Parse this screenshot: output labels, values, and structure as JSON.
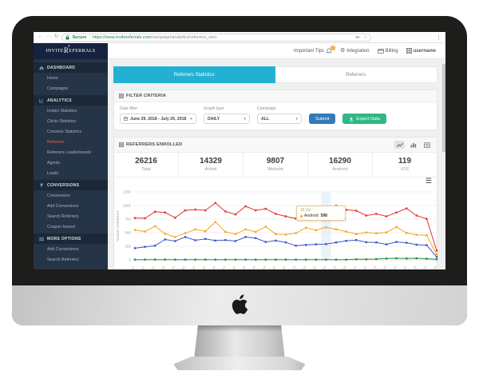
{
  "browser": {
    "secure_label": "Secure",
    "url_origin": "https://www.invitereferrals.com",
    "url_path": "/campaign/analytics/referrers_zero"
  },
  "header": {
    "logo_invite": "INVITE",
    "logo_r": "R",
    "logo_rest": "EFERRALS",
    "important_tips": "Important Tips",
    "tips_badge": "5",
    "integration": "Integration",
    "billing": "Billing",
    "username": "username"
  },
  "sidebar": {
    "sections": [
      {
        "label": "DASHBOARD",
        "icon": "home-icon",
        "items": [
          {
            "label": "Home"
          },
          {
            "label": "Campaigns"
          }
        ]
      },
      {
        "label": "ANALYTICS",
        "icon": "analytics-icon",
        "items": [
          {
            "label": "Invites Statistics"
          },
          {
            "label": "Clicks Statistics"
          },
          {
            "label": "Converts Statistics"
          },
          {
            "label": "Referrers",
            "active": true
          },
          {
            "label": "Referrers Leaderboards"
          },
          {
            "label": "Agents"
          },
          {
            "label": "Leads"
          }
        ]
      },
      {
        "label": "CONVERSIONS",
        "icon": "funnel-icon",
        "items": [
          {
            "label": "Conversions"
          },
          {
            "label": "Add Conversions"
          },
          {
            "label": "Search Referrers"
          },
          {
            "label": "Coupon Issued"
          }
        ]
      },
      {
        "label": "MORE OPTIONS",
        "icon": "menu-icon",
        "items": [
          {
            "label": "Add Conversions"
          },
          {
            "label": "Search Referrers"
          }
        ]
      }
    ]
  },
  "tabs": [
    {
      "label": "Referrers Statistics",
      "active": true
    },
    {
      "label": "Referrers",
      "active": false
    }
  ],
  "filter": {
    "title": "FILTER CRITERIA",
    "date_label": "Date filter",
    "date_value": "June 29, 2018 - July 29, 2018",
    "graph_label": "Graph type",
    "graph_value": "DAILY",
    "campaign_label": "Campaign",
    "campaign_value": "ALL",
    "submit_label": "Submit",
    "export_label": "Export Data"
  },
  "enrolled": {
    "title": "REFERRERS ENROLLED",
    "stats": [
      {
        "value": "26216",
        "label": "Total"
      },
      {
        "value": "14329",
        "label": "Active"
      },
      {
        "value": "9807",
        "label": "Website"
      },
      {
        "value": "16290",
        "label": "Android"
      },
      {
        "value": "119",
        "label": "IOS"
      }
    ]
  },
  "chart_data": {
    "type": "line",
    "title": "",
    "xlabel": "",
    "ylabel": "Number of Referrers",
    "ylim": [
      0,
      1250
    ],
    "yticks": [
      0,
      250,
      500,
      750,
      1000,
      1250
    ],
    "grid": true,
    "legend": "none",
    "x": [
      "29 Jun",
      "30 Jun",
      "01 Jul",
      "02 Jul",
      "03 Jul",
      "04 Jul",
      "05 Jul",
      "06 Jul",
      "07 Jul",
      "08 Jul",
      "09 Jul",
      "10 Jul",
      "11 Jul",
      "12 Jul",
      "13 Jul",
      "14 Jul",
      "15 Jul",
      "16 Jul",
      "17 Jul",
      "18 Jul",
      "19 Jul",
      "20 Jul",
      "21 Jul",
      "22 Jul",
      "23 Jul",
      "24 Jul",
      "25 Jul",
      "26 Jul",
      "27 Jul",
      "28 Jul",
      "29 Jul"
    ],
    "series": [
      {
        "name": "Total",
        "color": "#e53531",
        "values": [
          770,
          765,
          885,
          870,
          775,
          910,
          925,
          910,
          1045,
          890,
          835,
          985,
          910,
          940,
          845,
          800,
          760,
          870,
          855,
          870,
          995,
          920,
          905,
          815,
          845,
          800,
          870,
          945,
          815,
          755,
          170
        ]
      },
      {
        "name": "Android",
        "color": "#f5a623",
        "values": [
          550,
          520,
          620,
          480,
          420,
          490,
          560,
          525,
          695,
          515,
          475,
          560,
          515,
          610,
          475,
          465,
          490,
          590,
          545,
          598,
          560,
          520,
          475,
          505,
          490,
          505,
          605,
          495,
          460,
          455,
          100
        ]
      },
      {
        "name": "Website",
        "color": "#4053cd",
        "values": [
          215,
          240,
          260,
          375,
          345,
          420,
          360,
          385,
          355,
          365,
          345,
          420,
          400,
          330,
          355,
          320,
          260,
          275,
          285,
          290,
          320,
          350,
          365,
          325,
          320,
          285,
          330,
          315,
          280,
          270,
          55
        ]
      },
      {
        "name": "IOS",
        "color": "#23903b",
        "values": [
          5,
          5,
          5,
          5,
          5,
          5,
          5,
          5,
          5,
          5,
          5,
          5,
          5,
          5,
          5,
          5,
          5,
          5,
          5,
          5,
          5,
          5,
          10,
          10,
          15,
          25,
          30,
          25,
          30,
          20,
          10
        ]
      }
    ],
    "tooltip": {
      "x_index": 19,
      "date": "18 Jul",
      "series": "Android",
      "value": "598"
    }
  },
  "colors": {
    "tab_active": "#23b1d3",
    "submit_blue": "#337ab7",
    "export_green": "#2eb885",
    "sidebar_active": "#e06c3a",
    "badge_orange": "#f5a623"
  }
}
